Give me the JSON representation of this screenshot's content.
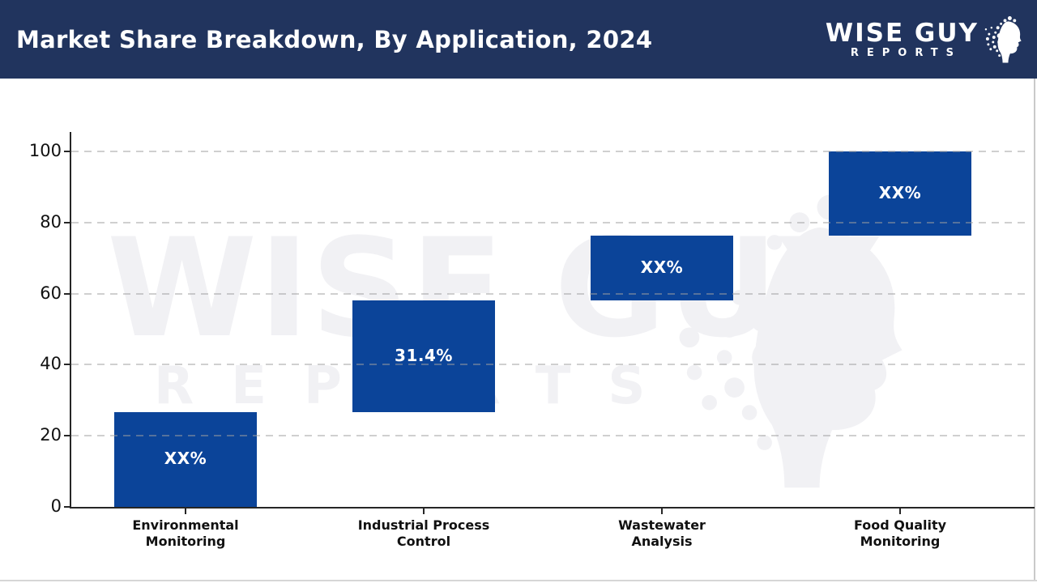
{
  "header": {
    "title": "Market Share Breakdown, By Application, 2024",
    "bg_color": "#21345E",
    "logo": {
      "brand_line1": "WISE GUY",
      "brand_line2": "REPORTS"
    }
  },
  "watermark": {
    "line1": "WISE GUY",
    "line2": "REPORTS"
  },
  "chart_data": {
    "type": "bar",
    "variant": "stacked-waterfall",
    "title": "Market Share Breakdown, By Application, 2024",
    "categories": [
      "Environmental Monitoring",
      "Industrial Process Control",
      "Wastewater Analysis",
      "Food Quality Monitoring"
    ],
    "category_label_lines": [
      [
        "Environmental",
        "Monitoring"
      ],
      [
        "Industrial Process",
        "Control"
      ],
      [
        "Wastewater",
        "Analysis"
      ],
      [
        "Food Quality",
        "Monitoring"
      ]
    ],
    "segments": [
      {
        "category": "Environmental Monitoring",
        "bar_label": "XX%",
        "start": 0,
        "end": 26.7
      },
      {
        "category": "Industrial Process Control",
        "bar_label": "31.4%",
        "start": 26.7,
        "end": 58.1
      },
      {
        "category": "Wastewater Analysis",
        "bar_label": "XX%",
        "start": 58.1,
        "end": 76.2
      },
      {
        "category": "Food Quality Monitoring",
        "bar_label": "XX%",
        "start": 76.2,
        "end": 100
      }
    ],
    "xlabel": "",
    "ylabel": "",
    "yticks": [
      0,
      20,
      40,
      60,
      80,
      100
    ],
    "ylim": [
      0,
      105
    ],
    "grid": "dashed-horizontal",
    "legend": false,
    "bar_color": "#0B4499",
    "bar_label_color": "#FFFFFF",
    "axis_color": "#262626"
  }
}
